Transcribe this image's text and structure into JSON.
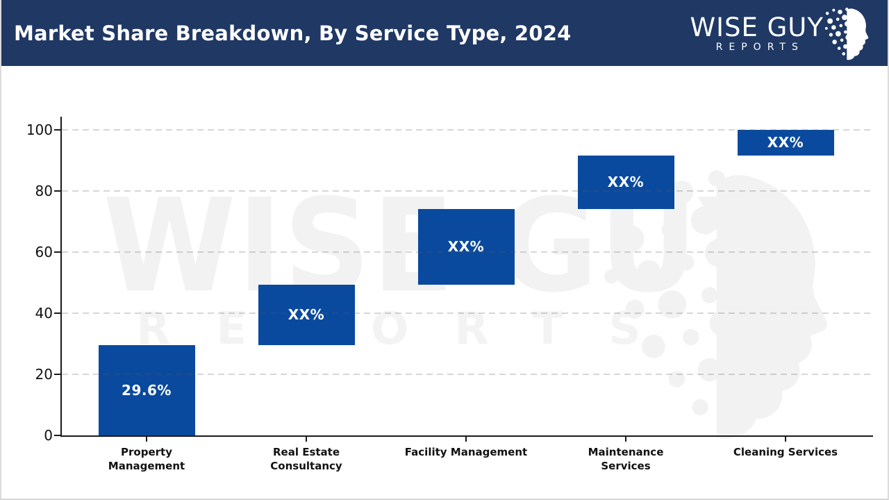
{
  "header": {
    "title": "Market Share Breakdown, By Service Type, 2024",
    "bg_color": "#1f3864",
    "logo": {
      "line1": "WISE GUY",
      "line2": "REPORTS"
    }
  },
  "watermark": {
    "line1": "WISE GUY",
    "line2": "REPORTS"
  },
  "chart_data": {
    "type": "bar",
    "variant": "waterfall",
    "title": "Market Share Breakdown, By Service Type, 2024",
    "categories": [
      "Property Management",
      "Real Estate Consultancy",
      "Facility Management",
      "Maintenance Services",
      "Cleaning Services"
    ],
    "segments": [
      {
        "category": "Property Management",
        "start": 0,
        "end": 29.6,
        "label": "29.6%"
      },
      {
        "category": "Real Estate Consultancy",
        "start": 29.6,
        "end": 49.4,
        "label": "XX%"
      },
      {
        "category": "Facility Management",
        "start": 49.4,
        "end": 74.1,
        "label": "XX%"
      },
      {
        "category": "Maintenance Services",
        "start": 74.1,
        "end": 91.6,
        "label": "XX%"
      },
      {
        "category": "Cleaning Services",
        "start": 91.6,
        "end": 100,
        "label": "XX%"
      }
    ],
    "yticks": [
      0,
      20,
      40,
      60,
      80,
      100
    ],
    "ylim": [
      0,
      104
    ],
    "xlabel": "",
    "ylabel": "",
    "grid": {
      "axis": "y",
      "style": "dashed"
    },
    "legend": "none",
    "bar_color": "#0a4a9e",
    "bar_label_color": "#ffffff"
  }
}
